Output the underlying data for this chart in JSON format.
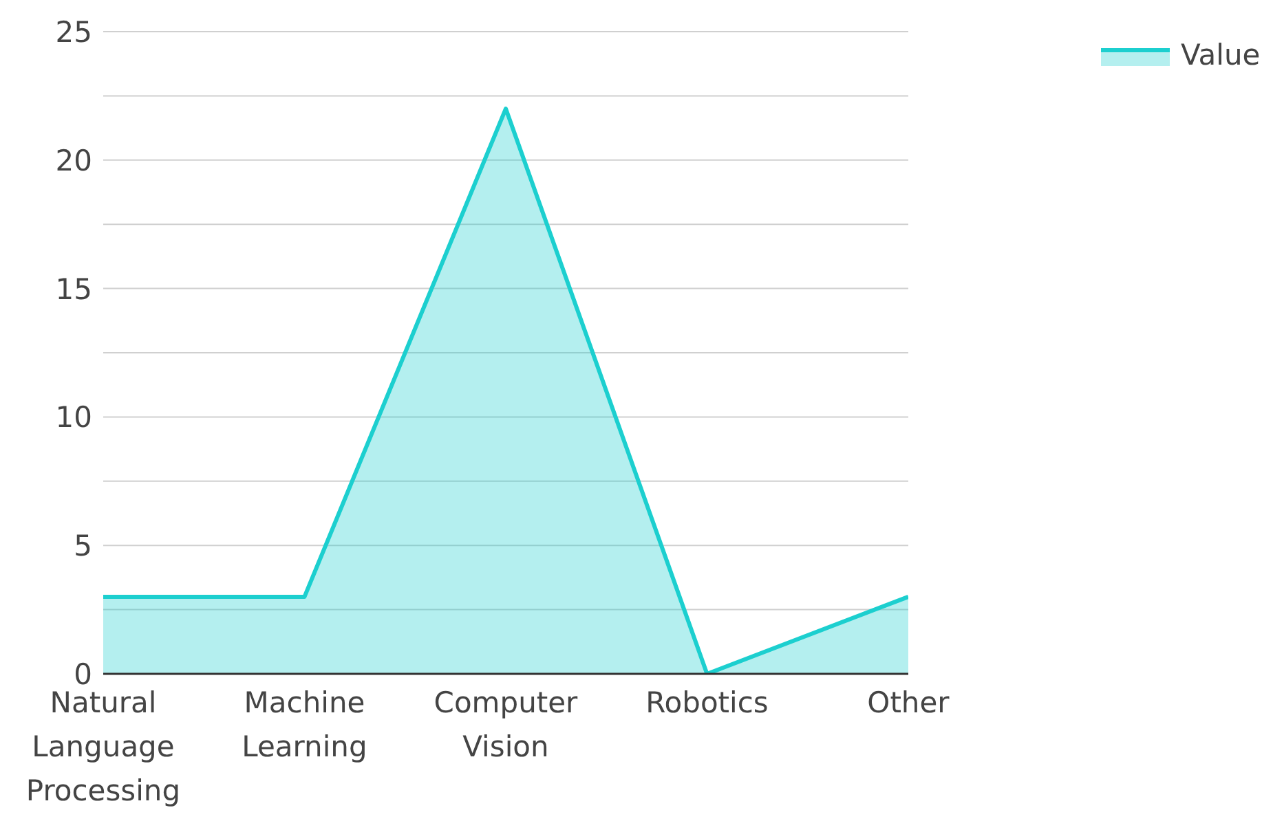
{
  "chart_data": {
    "type": "area",
    "categories": [
      "Natural Language Processing",
      "Machine Learning",
      "Computer Vision",
      "Robotics",
      "Other"
    ],
    "series": [
      {
        "name": "Value",
        "color": "#1ccfcf",
        "values": [
          3,
          3,
          22,
          0,
          3
        ]
      }
    ],
    "ylim": [
      0,
      25
    ],
    "yticks": [
      0,
      {
        "value": 2.5,
        "label": null
      },
      5,
      {
        "value": 7.5,
        "label": null
      },
      10,
      {
        "value": 12.5,
        "label": null
      },
      15,
      {
        "value": 17.5,
        "label": null
      },
      20,
      {
        "value": 22.5,
        "label": null
      },
      25
    ],
    "grid": "y",
    "legend": "top right",
    "marker": "none",
    "line_style": "solid"
  }
}
